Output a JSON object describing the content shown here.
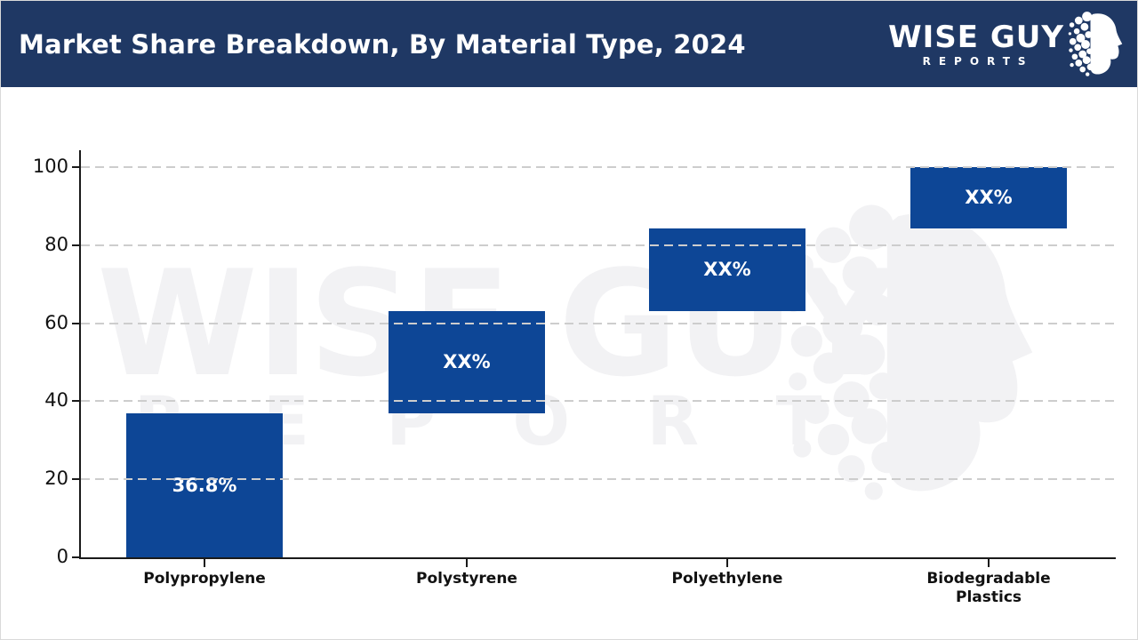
{
  "header": {
    "title": "Market Share Breakdown, By Material Type, 2024",
    "logo": {
      "line1": "WISE GUY",
      "line2": "REPORTS"
    }
  },
  "watermark": {
    "line1": "WISE GUY",
    "line2": "R E P O R T S"
  },
  "chart_data": {
    "type": "bar",
    "subtype": "waterfall",
    "title": "Market Share Breakdown, By Material Type, 2024",
    "categories": [
      "Polypropylene",
      "Polystyrene",
      "Polyethylene",
      "Biodegradable Plastics"
    ],
    "segments": [
      {
        "category": "Polypropylene",
        "start": 0,
        "end": 36.8,
        "value_label": "36.8%"
      },
      {
        "category": "Polystyrene",
        "start": 36.8,
        "end": 63.2,
        "value_label": "XX%"
      },
      {
        "category": "Polyethylene",
        "start": 63.2,
        "end": 84.3,
        "value_label": "XX%"
      },
      {
        "category": "Biodegradable Plastics",
        "start": 84.3,
        "end": 100,
        "value_label": "XX%"
      }
    ],
    "xlabel": "",
    "ylabel": "",
    "ylim": [
      0,
      100
    ],
    "yticks": [
      0,
      20,
      40,
      60,
      80,
      100
    ],
    "grid": "horizontal-dashed",
    "legend": "none",
    "bar_color": "#0d4696",
    "value_label_color": "#ffffff"
  },
  "colors": {
    "header_bg": "#1f3864",
    "bar": "#0d4696",
    "grid": "#cdcdcd",
    "axis": "#1a1a1a",
    "watermark": "#f2f2f4",
    "frame_border": "#d9d9d9"
  }
}
